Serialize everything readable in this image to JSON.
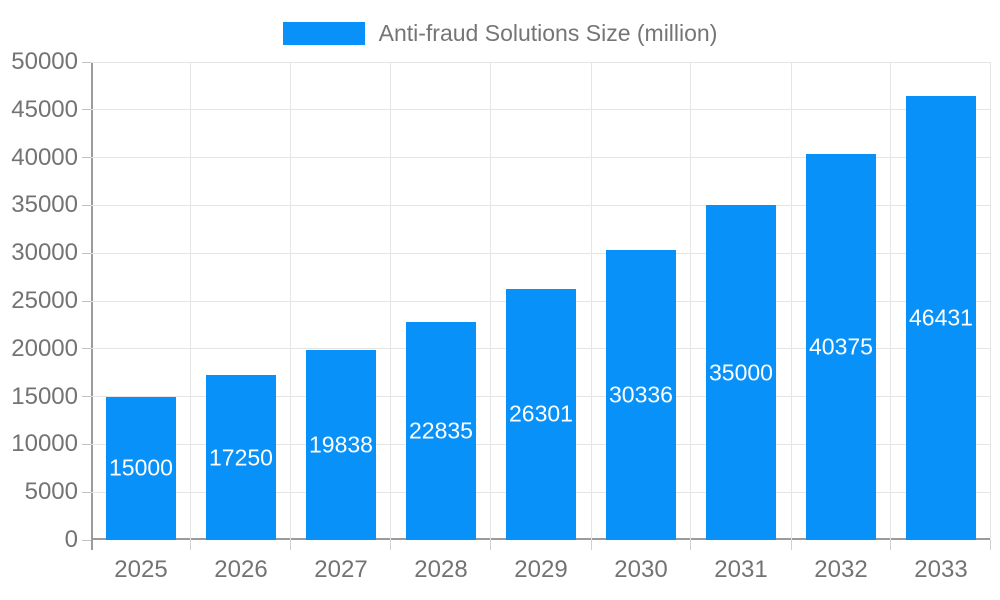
{
  "legend": {
    "label": "Anti-fraud Solutions Size (million)"
  },
  "colors": {
    "bar": "#0891F9",
    "grid": "#E5E5E5",
    "axis": "#9B9B9B",
    "tick_label": "#737373",
    "legend_text": "#757575",
    "bar_label": "#FFFFFF",
    "background": "#FFFFFF"
  },
  "chart_data": {
    "type": "bar",
    "title": "Anti-fraud Solutions Size (million)",
    "categories": [
      "2025",
      "2026",
      "2027",
      "2028",
      "2029",
      "2030",
      "2031",
      "2032",
      "2033"
    ],
    "series": [
      {
        "name": "Anti-fraud Solutions Size (million)",
        "values": [
          15000,
          17250,
          19838,
          22835,
          26301,
          30336,
          35000,
          40375,
          46431
        ]
      }
    ],
    "xlabel": "",
    "ylabel": "",
    "ylim": [
      0,
      50000
    ],
    "ytick_step": 5000,
    "ytick_labels": [
      "0",
      "5000",
      "10000",
      "15000",
      "20000",
      "25000",
      "30000",
      "35000",
      "40000",
      "45000",
      "50000"
    ],
    "grid": true,
    "legend_position": "top-center",
    "bar_label_position": "inside-center",
    "bar_width_fraction": 0.7
  }
}
